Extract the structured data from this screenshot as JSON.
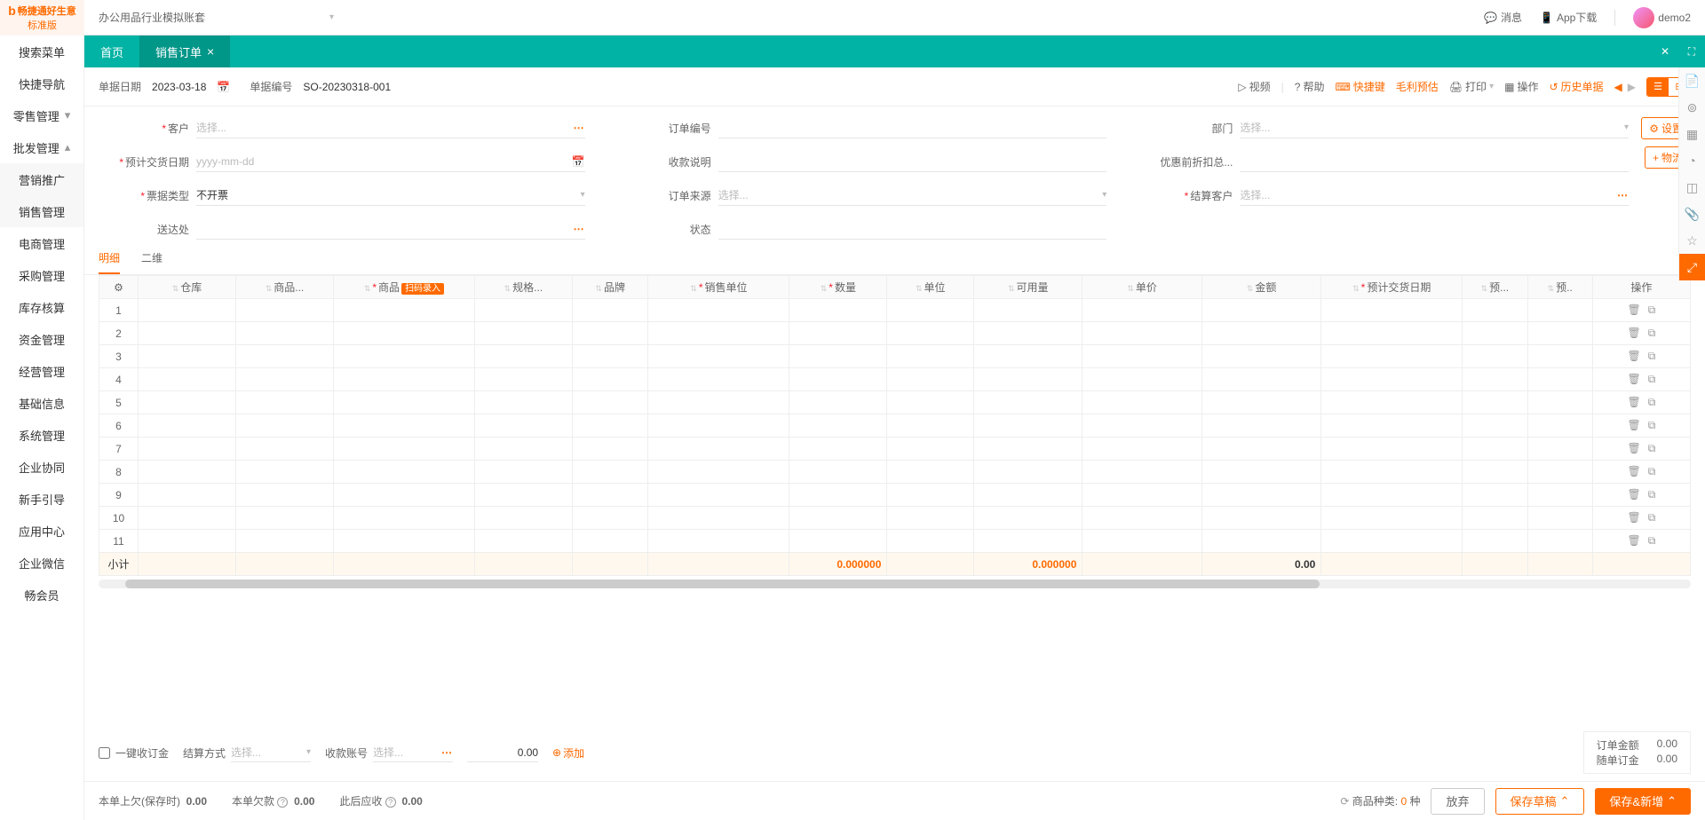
{
  "topbar": {
    "logo_text": "畅捷通好生意",
    "edition": "标准版",
    "account": "办公用品行业模拟账套",
    "message": "消息",
    "download": "App下载",
    "user": "demo2"
  },
  "sidebar": {
    "search": "搜索菜单",
    "quicknav": "快捷导航",
    "retail": "零售管理",
    "wholesale": "批发管理",
    "marketing": "营销推广",
    "sales": "销售管理",
    "ecommerce": "电商管理",
    "purchase": "采购管理",
    "inventory": "库存核算",
    "finance": "资金管理",
    "operation": "经营管理",
    "basic": "基础信息",
    "system": "系统管理",
    "collab": "企业协同",
    "guide": "新手引导",
    "appcenter": "应用中心",
    "wecom": "企业微信",
    "member": "畅会员"
  },
  "tabs": {
    "home": "首页",
    "order": "销售订单"
  },
  "docHead": {
    "date_label": "单据日期",
    "date_value": "2023-03-18",
    "no_label": "单据编号",
    "no_value": "SO-20230318-001",
    "video": "视频",
    "help": "帮助",
    "shortcut": "快捷键",
    "profit": "毛利预估",
    "print": "打印",
    "ops": "操作",
    "history": "历史单据"
  },
  "form": {
    "customer_label": "客户",
    "orderno_label": "订单编号",
    "dept_label": "部门",
    "delivdate_label": "预计交货日期",
    "delivdate_ph": "yyyy-mm-dd",
    "paydesc_label": "收款说明",
    "discount_label": "优惠前折扣总...",
    "invoice_label": "票据类型",
    "invoice_value": "不开票",
    "source_label": "订单来源",
    "settle_label": "结算客户",
    "address_label": "送达处",
    "status_label": "状态",
    "select_ph": "选择...",
    "settings": "设置",
    "logistics": "物流"
  },
  "subtabs": {
    "detail": "明细",
    "matrix": "二维"
  },
  "table": {
    "cols": {
      "gear": "⚙",
      "warehouse": "仓库",
      "goodsno": "商品...",
      "goods": "商品",
      "scan": "扫码录入",
      "spec": "规格...",
      "brand": "品牌",
      "unit": "销售单位",
      "qty": "数量",
      "unit2": "单位",
      "available": "可用量",
      "price": "单价",
      "amount": "金额",
      "delivdate": "预计交货日期",
      "pre1": "预...",
      "pre2": "预..",
      "action": "操作"
    },
    "rows": [
      "1",
      "2",
      "3",
      "4",
      "5",
      "6",
      "7",
      "8",
      "9",
      "10",
      "11"
    ],
    "subtotal": "小计",
    "sub_qty": "0.000000",
    "sub_avail": "0.000000",
    "sub_amt": "0.00"
  },
  "pay": {
    "deposit": "一键收订金",
    "settletype_label": "结算方式",
    "account_label": "收款账号",
    "select_ph": "选择...",
    "amount": "0.00",
    "add": "添加"
  },
  "totals": {
    "order_label": "订单金额",
    "order_value": "0.00",
    "deposit_label": "随单订金",
    "deposit_value": "0.00"
  },
  "footer": {
    "prev_label": "本单上欠(保存时)",
    "prev_value": "0.00",
    "owed_label": "本单欠款",
    "owed_value": "0.00",
    "after_label": "此后应收",
    "after_value": "0.00",
    "kinds_label": "商品种类:",
    "kinds_value": "0",
    "kinds_unit": "种",
    "discard": "放弃",
    "draft": "保存草稿",
    "save": "保存&新增"
  },
  "colors": {
    "teal": "#00b3a4",
    "orange": "#ff6a00"
  }
}
